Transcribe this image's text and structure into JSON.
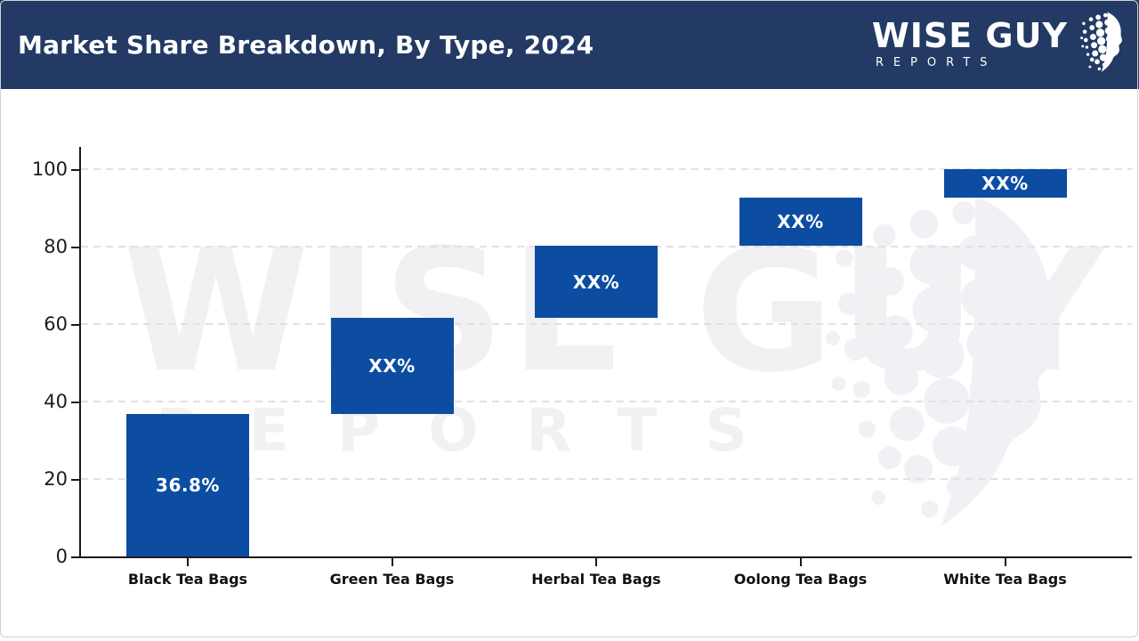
{
  "header": {
    "title": "Market Share Breakdown, By Type, 2024",
    "logo": {
      "line1": "WISE GUY",
      "line2": "REPORTS"
    }
  },
  "watermark": {
    "line1": "WISE GUY",
    "line2": "REPORTS"
  },
  "chart_data": {
    "type": "bar",
    "subtype": "waterfall",
    "title": "Market Share Breakdown, By Type, 2024",
    "categories": [
      "Black Tea Bags",
      "Green Tea Bags",
      "Herbal Tea Bags",
      "Oolong Tea Bags",
      "White Tea Bags"
    ],
    "bars": [
      {
        "category": "Black Tea Bags",
        "start": 0,
        "end": 36.8,
        "label": "36.8%"
      },
      {
        "category": "Green Tea Bags",
        "start": 36.8,
        "end": 61.6,
        "label": "XX%"
      },
      {
        "category": "Herbal Tea Bags",
        "start": 61.6,
        "end": 80.2,
        "label": "XX%"
      },
      {
        "category": "Oolong Tea Bags",
        "start": 80.2,
        "end": 92.6,
        "label": "XX%"
      },
      {
        "category": "White Tea Bags",
        "start": 92.6,
        "end": 100,
        "label": "XX%"
      }
    ],
    "yticks": [
      0,
      20,
      40,
      60,
      80,
      100
    ],
    "ylim": [
      0,
      105
    ],
    "xlabel": "",
    "ylabel": "",
    "grid": "dashed-horizontal",
    "legend": "none"
  },
  "colors": {
    "header_bg": "#223A64",
    "bar_fill": "#0C4DA2",
    "grid_line": "#E1E1E1",
    "axis_line": "#1A1A1A",
    "value_label": "#FFFFFF",
    "watermark": "#F1F1F4",
    "card_border": "#D2D2D2"
  }
}
